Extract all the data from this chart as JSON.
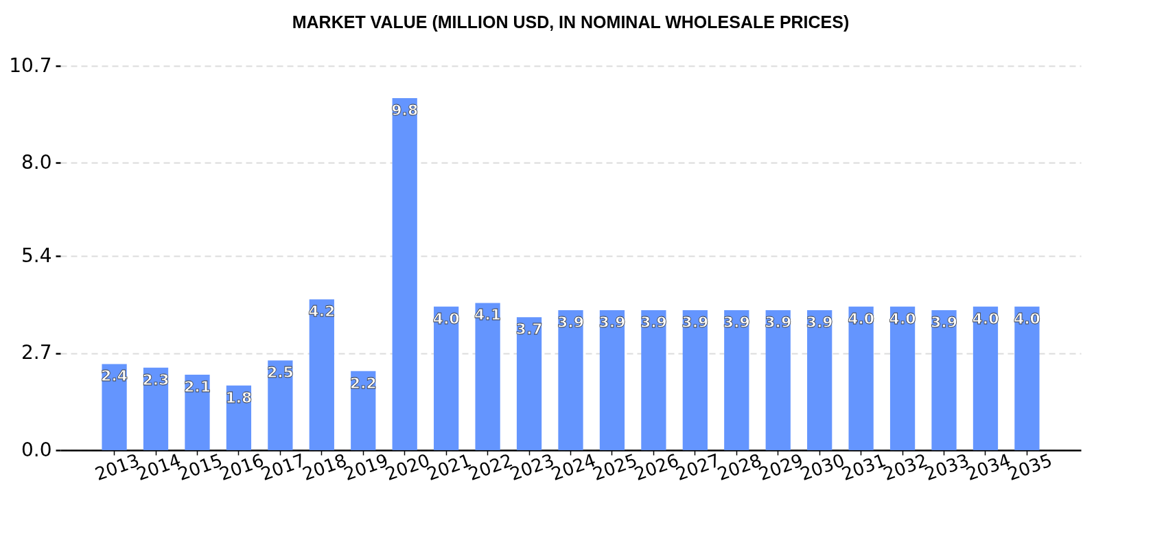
{
  "chart_data": {
    "type": "bar",
    "title": "MARKET VALUE (MILLION USD, IN NOMINAL WHOLESALE PRICES)",
    "categories": [
      "2013",
      "2014",
      "2015",
      "2016",
      "2017",
      "2018",
      "2019",
      "2020",
      "2021",
      "2022",
      "2023",
      "2024",
      "2025",
      "2026",
      "2027",
      "2028",
      "2029",
      "2030",
      "2031",
      "2032",
      "2033",
      "2034",
      "2035"
    ],
    "values": [
      2.4,
      2.3,
      2.1,
      1.8,
      2.5,
      4.2,
      2.2,
      9.8,
      4.0,
      4.1,
      3.7,
      3.9,
      3.9,
      3.9,
      3.9,
      3.9,
      3.9,
      3.9,
      4.0,
      4.0,
      3.9,
      4.0,
      4.0
    ],
    "value_labels": [
      "2.4",
      "2.3",
      "2.1",
      "1.8",
      "2.5",
      "4.2",
      "2.2",
      "9.8",
      "4.0",
      "4.1",
      "3.7",
      "3.9",
      "3.9",
      "3.9",
      "3.9",
      "3.9",
      "3.9",
      "3.9",
      "4.0",
      "4.0",
      "3.9",
      "4.0",
      "4.0"
    ],
    "color": "#6495fe",
    "ylim": [
      0,
      10.7
    ],
    "yticks": [
      {
        "value": 0,
        "label": "0.0"
      },
      2.7,
      5.4,
      {
        "value": 8,
        "label": "8.0"
      },
      10.7
    ],
    "grid": "y"
  }
}
